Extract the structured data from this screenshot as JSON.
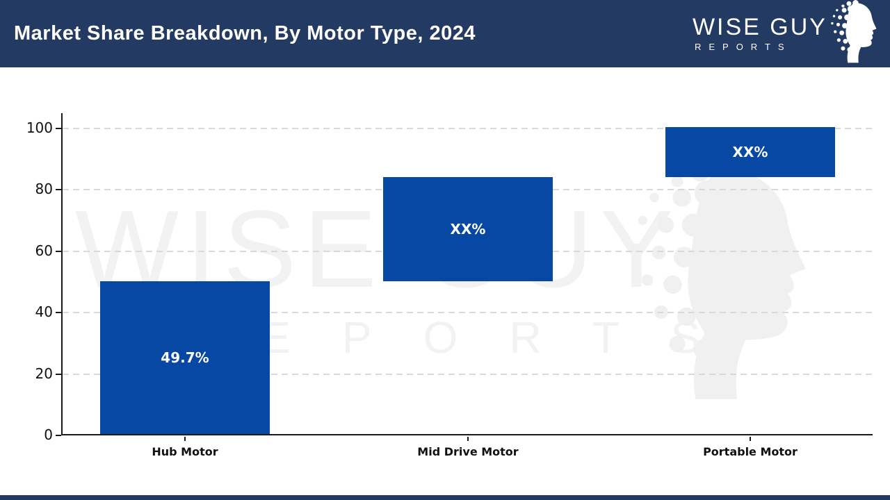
{
  "header": {
    "title": "Market Share Breakdown, By Motor Type, 2024",
    "logo": {
      "line1": "WISE GUY",
      "line2": "REPORTS"
    }
  },
  "watermark": {
    "line1": "WISE GUY",
    "line2": "REPORTS"
  },
  "chart_data": {
    "type": "bar",
    "subtype": "floating-waterfall-share",
    "title": "Market Share Breakdown, By Motor Type, 2024",
    "categories": [
      "Hub Motor",
      "Mid Drive Motor",
      "Portable Motor"
    ],
    "bars": [
      {
        "category": "Hub Motor",
        "start": 0,
        "end": 49.7,
        "label": "49.7%"
      },
      {
        "category": "Mid Drive Motor",
        "start": 49.7,
        "end": 83.7,
        "label": "XX%"
      },
      {
        "category": "Portable Motor",
        "start": 83.7,
        "end": 100,
        "label": "XX%"
      }
    ],
    "xlabel": "",
    "ylabel": "",
    "ylim": [
      0,
      105
    ],
    "yticks": [
      0,
      20,
      40,
      60,
      80,
      100
    ],
    "grid": "horizontal-dashed",
    "legend": "none",
    "bar_color": "#0848a5",
    "bar_label_color": "#ffffff"
  },
  "colors": {
    "header_bg": "#233a62",
    "footer_bg": "#233a62",
    "axis": "#1a1a1a",
    "grid": "#d9d9d9",
    "watermark": "#f2f2f2"
  }
}
